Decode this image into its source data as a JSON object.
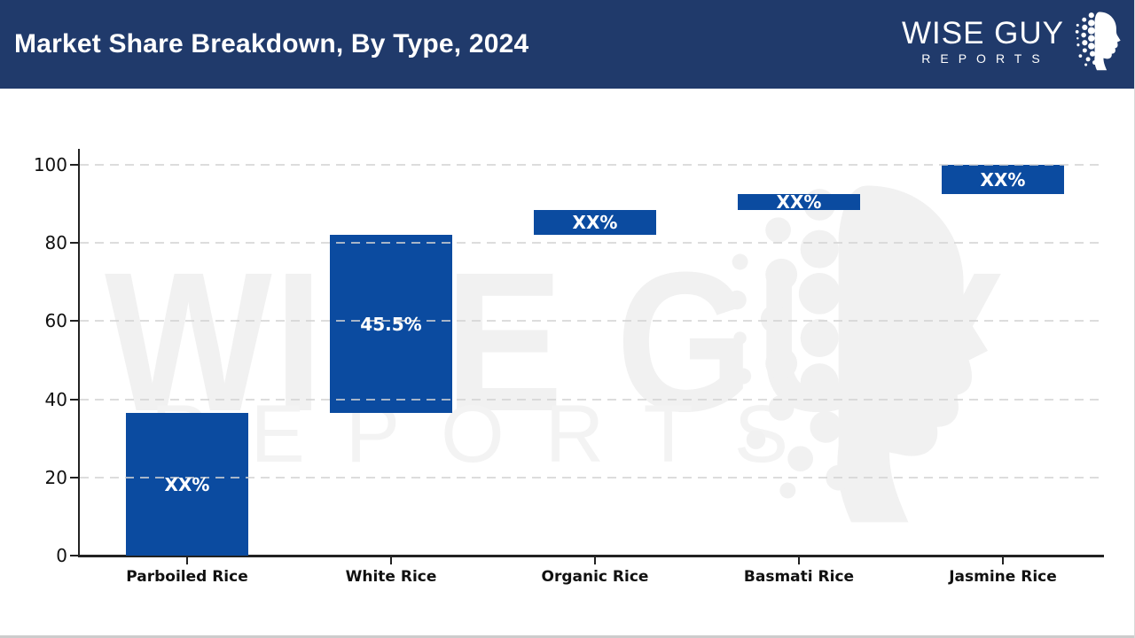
{
  "header": {
    "title": "Market Share Breakdown, By Type, 2024",
    "bg_color": "#203a6b",
    "logo": {
      "name": "WISE GUY",
      "subtitle": "REPORTS"
    }
  },
  "watermark": {
    "name": "WISE GUY",
    "subtitle": "REPORTS"
  },
  "chart_data": {
    "type": "bar",
    "variant": "waterfall (floating cumulative segments)",
    "title": "Market Share Breakdown, By Type, 2024",
    "categories": [
      "Parboiled Rice",
      "White Rice",
      "Organic Rice",
      "Basmati Rice",
      "Jasmine Rice"
    ],
    "segments": [
      {
        "category": "Parboiled Rice",
        "from": 0,
        "to": 36.5,
        "label": "XX%"
      },
      {
        "category": "White Rice",
        "from": 36.5,
        "to": 82,
        "label": "45.5%"
      },
      {
        "category": "Organic Rice",
        "from": 82,
        "to": 88.5,
        "label": "XX%"
      },
      {
        "category": "Basmati Rice",
        "from": 88.5,
        "to": 92.5,
        "label": "XX%"
      },
      {
        "category": "Jasmine Rice",
        "from": 92.5,
        "to": 100,
        "label": "XX%"
      }
    ],
    "xlabel": "",
    "ylabel": "",
    "yticks": [
      0,
      20,
      40,
      60,
      80,
      100
    ],
    "ylim": [
      0,
      103.6
    ],
    "grid": "horizontal dashed, drawn over bars",
    "legend": "none",
    "bar_color": "#0b4ba0",
    "bar_label_color": "#ffffff",
    "axis_color": "#222222"
  }
}
